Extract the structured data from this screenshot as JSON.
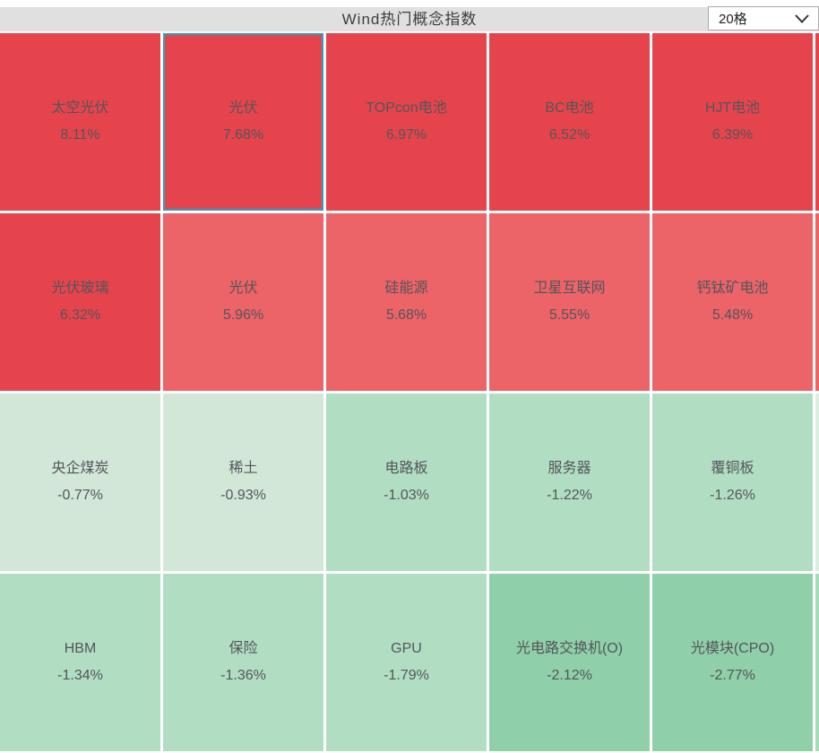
{
  "header": {
    "title": "Wind热门概念指数",
    "cell_count_select": {
      "value": "20格"
    }
  },
  "colors": {
    "header_bg": "#e0e0e0",
    "selected_border": "#2aa1c4",
    "cell_text": "#53565a",
    "tiers": {
      "red-strong": "#e6444c",
      "red-light": "#ec6368",
      "green-lightest": "#d2e7d8",
      "green-light": "#b1ddc3",
      "green-medium": "#8fcfa9",
      "red-strong-strip": "#e6444c",
      "red-light-strip": "#ec6368",
      "green-pale-strip": "#dcede1",
      "green-strip": "#a8dabb"
    }
  },
  "chart_data": {
    "type": "heatmap",
    "title": "Wind热门概念指数",
    "value_unit": "percent_change",
    "grid": {
      "rows": 4,
      "cols": 5
    },
    "cells": [
      {
        "name": "太空光伏",
        "value": 8.11,
        "label": "8.11%",
        "tier": "red-strong",
        "selected": false
      },
      {
        "name": "光伏",
        "value": 7.68,
        "label": "7.68%",
        "tier": "red-strong",
        "selected": true
      },
      {
        "name": "TOPcon电池",
        "value": 6.97,
        "label": "6.97%",
        "tier": "red-strong",
        "selected": false
      },
      {
        "name": "BC电池",
        "value": 6.52,
        "label": "6.52%",
        "tier": "red-strong",
        "selected": false
      },
      {
        "name": "HJT电池",
        "value": 6.39,
        "label": "6.39%",
        "tier": "red-strong",
        "selected": false
      },
      {
        "name": "光伏玻璃",
        "value": 6.32,
        "label": "6.32%",
        "tier": "red-strong",
        "selected": false
      },
      {
        "name": "光伏",
        "value": 5.96,
        "label": "5.96%",
        "tier": "red-light",
        "selected": false
      },
      {
        "name": "硅能源",
        "value": 5.68,
        "label": "5.68%",
        "tier": "red-light",
        "selected": false
      },
      {
        "name": "卫星互联网",
        "value": 5.55,
        "label": "5.55%",
        "tier": "red-light",
        "selected": false
      },
      {
        "name": "钙钛矿电池",
        "value": 5.48,
        "label": "5.48%",
        "tier": "red-light",
        "selected": false
      },
      {
        "name": "央企煤炭",
        "value": -0.77,
        "label": "-0.77%",
        "tier": "green-lightest",
        "selected": false
      },
      {
        "name": "稀土",
        "value": -0.93,
        "label": "-0.93%",
        "tier": "green-lightest",
        "selected": false
      },
      {
        "name": "电路板",
        "value": -1.03,
        "label": "-1.03%",
        "tier": "green-light",
        "selected": false
      },
      {
        "name": "服务器",
        "value": -1.22,
        "label": "-1.22%",
        "tier": "green-light",
        "selected": false
      },
      {
        "name": "覆铜板",
        "value": -1.26,
        "label": "-1.26%",
        "tier": "green-light",
        "selected": false
      },
      {
        "name": "HBM",
        "value": -1.34,
        "label": "-1.34%",
        "tier": "green-light",
        "selected": false
      },
      {
        "name": "保险",
        "value": -1.36,
        "label": "-1.36%",
        "tier": "green-light",
        "selected": false
      },
      {
        "name": "GPU",
        "value": -1.79,
        "label": "-1.79%",
        "tier": "green-light",
        "selected": false
      },
      {
        "name": "光电路交换机(O)",
        "value": -2.12,
        "label": "-2.12%",
        "tier": "green-medium",
        "selected": false
      },
      {
        "name": "光模块(CPO)",
        "value": -2.77,
        "label": "-2.77%",
        "tier": "green-medium",
        "selected": false
      }
    ],
    "right_edge_partial_column_tiers": [
      "red-strong-strip",
      "red-light-strip",
      "green-pale-strip",
      "green-strip"
    ]
  }
}
